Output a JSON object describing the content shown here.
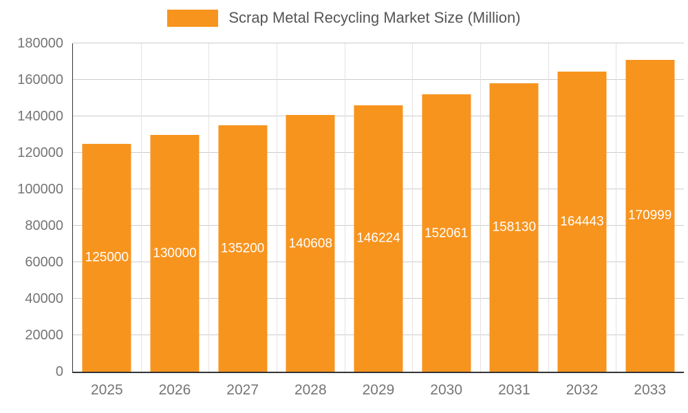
{
  "chart_data": {
    "type": "bar",
    "title": "Scrap Metal Recycling Market Size (Million)",
    "categories": [
      "2025",
      "2026",
      "2027",
      "2028",
      "2029",
      "2030",
      "2031",
      "2032",
      "2033"
    ],
    "values": [
      125000,
      130000,
      135200,
      140608,
      146224,
      152061,
      158130,
      164443,
      170999
    ],
    "xlabel": "",
    "ylabel": "",
    "ylim": [
      0,
      180000
    ],
    "yticks": [
      0,
      20000,
      40000,
      60000,
      80000,
      100000,
      120000,
      140000,
      160000,
      180000
    ],
    "grid": true,
    "legend_position": "top",
    "bar_color": "#F7941E",
    "bar_label_color": "#ffffff",
    "axis_label_color": "#757575",
    "title_color": "#555555",
    "gridline_color": "#cccccc"
  }
}
